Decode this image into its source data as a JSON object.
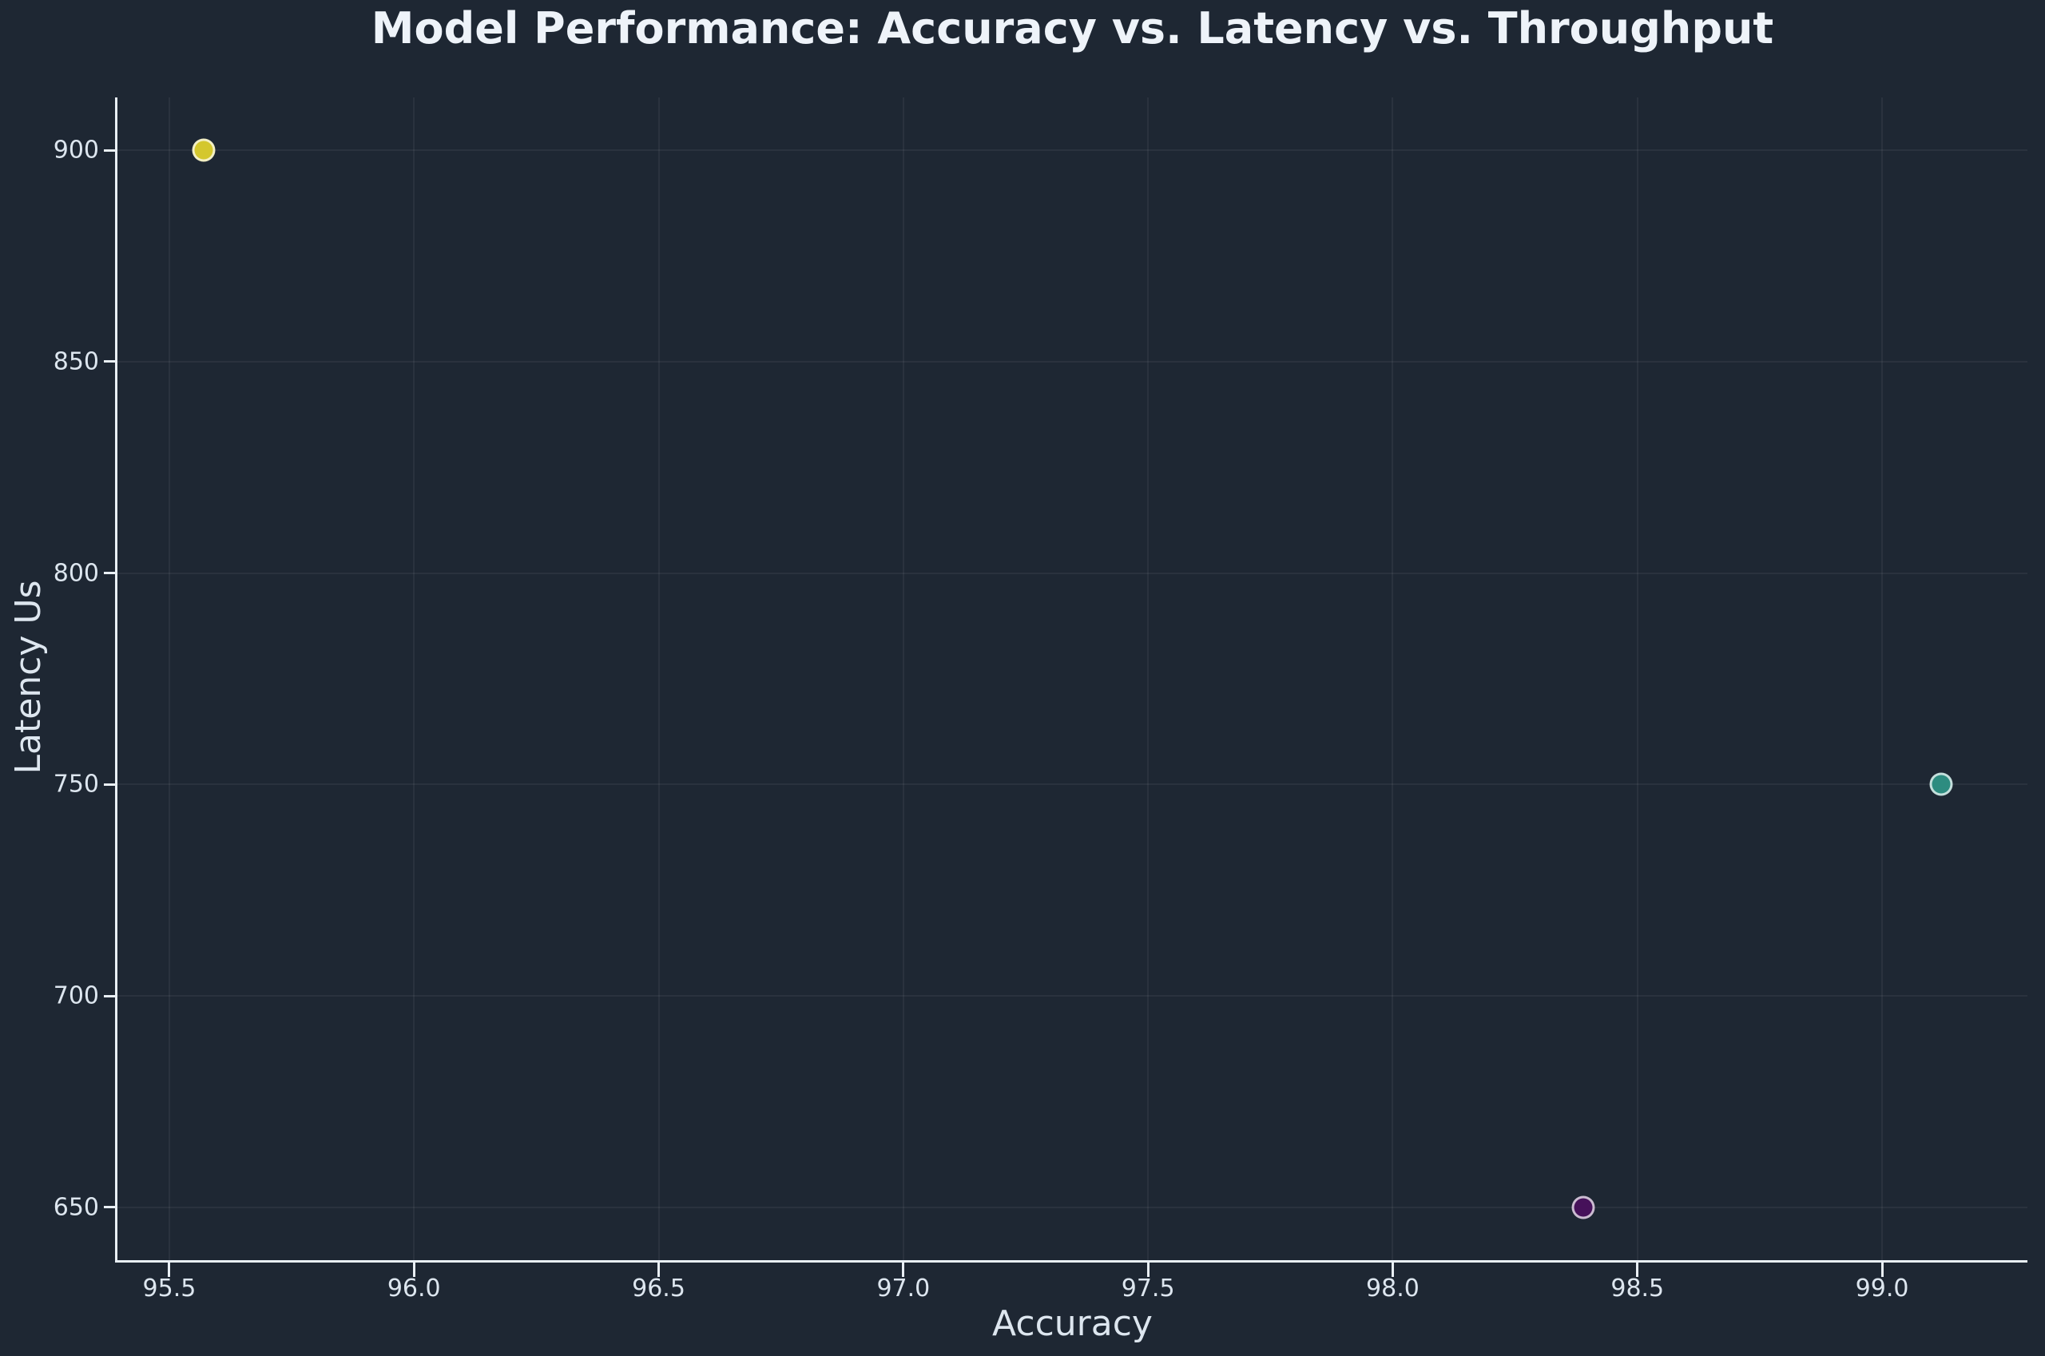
{
  "chart_data": {
    "type": "scatter",
    "title": "Model Performance: Accuracy vs. Latency vs. Throughput",
    "xlabel": "Accuracy",
    "ylabel": "Latency Us",
    "xlim": [
      95.394,
      99.297
    ],
    "ylim": [
      637.5,
      912.5
    ],
    "x_ticks": [
      {
        "value": 95.5,
        "label": "95.5"
      },
      {
        "value": 96.0,
        "label": "96.0"
      },
      {
        "value": 96.5,
        "label": "96.5"
      },
      {
        "value": 97.0,
        "label": "97.0"
      },
      {
        "value": 97.5,
        "label": "97.5"
      },
      {
        "value": 98.0,
        "label": "98.0"
      },
      {
        "value": 98.5,
        "label": "98.5"
      },
      {
        "value": 99.0,
        "label": "99.0"
      }
    ],
    "y_ticks": [
      {
        "value": 650,
        "label": "650"
      },
      {
        "value": 700,
        "label": "700"
      },
      {
        "value": 750,
        "label": "750"
      },
      {
        "value": 800,
        "label": "800"
      },
      {
        "value": 850,
        "label": "850"
      },
      {
        "value": 900,
        "label": "900"
      }
    ],
    "grid": true,
    "legend": "none",
    "points": [
      {
        "x": 95.57,
        "y": 900,
        "color": "#d4c72d"
      },
      {
        "x": 98.39,
        "y": 650,
        "color": "#46115a"
      },
      {
        "x": 99.12,
        "y": 750,
        "color": "#2d8c80"
      }
    ],
    "marker_diameter_px": 29
  },
  "style": {
    "background_color": "#1e2733",
    "text_color": "#dde6ef",
    "title_color": "#eef3f9",
    "spine_color": "#e9eff5",
    "grid_color": "rgba(255,255,255,0.055)",
    "point_edge_color": "rgba(255,255,255,0.72)"
  }
}
